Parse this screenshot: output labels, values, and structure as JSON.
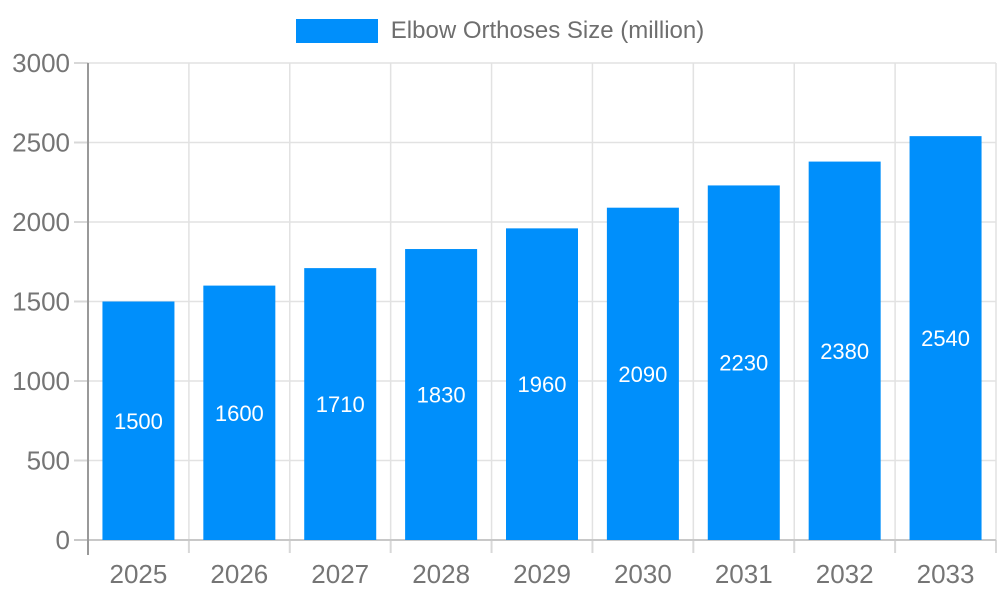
{
  "chart_data": {
    "type": "bar",
    "title": "Elbow Orthoses Size (million)",
    "legend": [
      {
        "label": "Elbow Orthoses Size (million)",
        "color": "#008FFB"
      }
    ],
    "categories": [
      "2025",
      "2026",
      "2027",
      "2028",
      "2029",
      "2030",
      "2031",
      "2032",
      "2033"
    ],
    "values": [
      1500,
      1600,
      1710,
      1830,
      1960,
      2090,
      2230,
      2380,
      2540
    ],
    "value_labels": [
      "1500",
      "1600",
      "1710",
      "1830",
      "1960",
      "2090",
      "2230",
      "2380",
      "2540"
    ],
    "xlabel": "",
    "ylabel": "",
    "ylim": [
      0,
      3000
    ],
    "ytick_step": 500,
    "ytick_labels": [
      "0",
      "500",
      "1000",
      "1500",
      "2000",
      "2500",
      "3000"
    ],
    "grid": "on",
    "legend_position": "top-center",
    "colors": {
      "bar": "#008FFB",
      "grid": "#e2e2e2",
      "axis_line": "#999999",
      "baseline": "#c8c8c8",
      "tick": "#d8d8d8",
      "axis_label": "#757575",
      "legend_text": "#6e6e6e",
      "value_label": "#ffffff",
      "background": "#ffffff"
    }
  }
}
